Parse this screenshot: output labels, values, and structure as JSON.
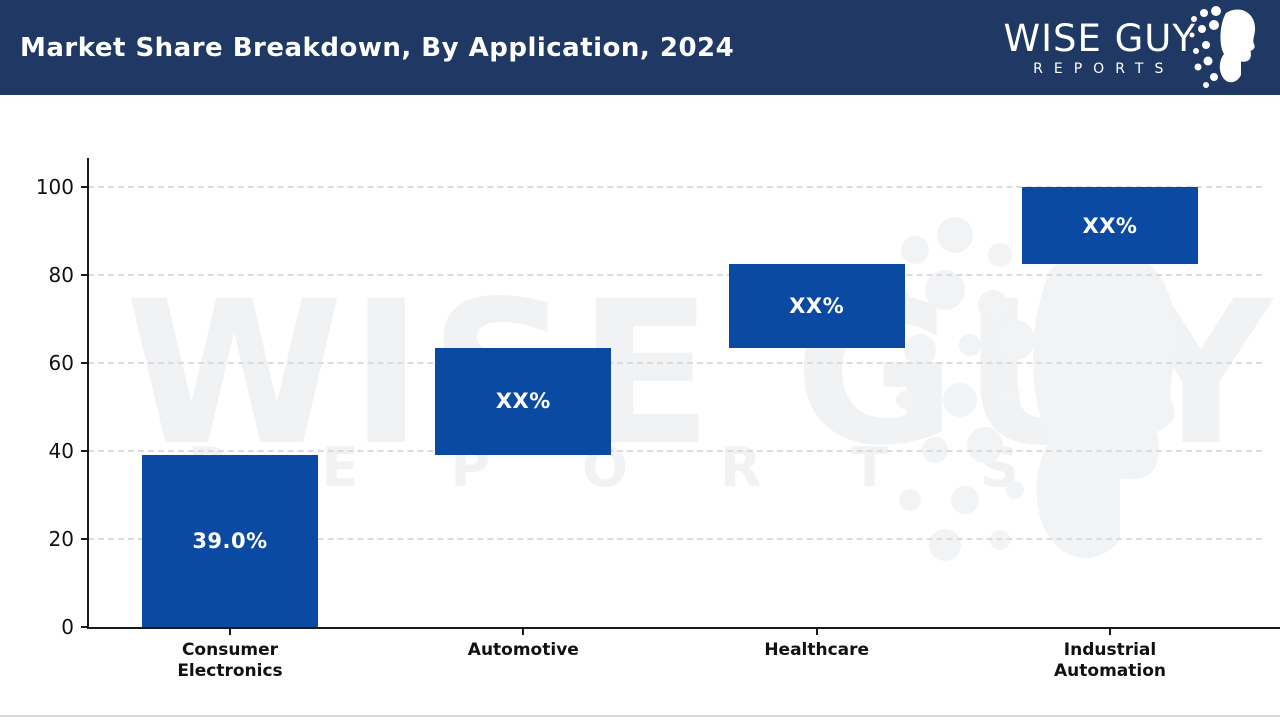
{
  "header": {
    "title": "Market Share Breakdown, By Application, 2024",
    "background_color": "#1f3864",
    "logo": {
      "brand_line1": "WISE GUY",
      "brand_line2": "REPORTS"
    }
  },
  "watermark": {
    "line1": "WISE GUY",
    "line2": "REPORTS"
  },
  "chart_data": {
    "type": "bar",
    "variant": "waterfall",
    "title": "Market Share Breakdown, By Application, 2024",
    "categories": [
      "Consumer Electronics",
      "Automotive",
      "Healthcare",
      "Industrial Automation"
    ],
    "category_label_lines": [
      [
        "Consumer",
        "Electronics"
      ],
      [
        "Automotive"
      ],
      [
        "Healthcare"
      ],
      [
        "Industrial",
        "Automation"
      ]
    ],
    "series": [
      {
        "name": "Market share (%)",
        "segments": [
          {
            "category": "Consumer Electronics",
            "start": 0,
            "end": 39,
            "label": "39.0%"
          },
          {
            "category": "Automotive",
            "start": 39,
            "end": 63.5,
            "label": "XX%"
          },
          {
            "category": "Healthcare",
            "start": 63.5,
            "end": 82.5,
            "label": "XX%"
          },
          {
            "category": "Industrial Automation",
            "start": 82.5,
            "end": 100,
            "label": "XX%"
          }
        ]
      }
    ],
    "yticks": [
      0,
      20,
      40,
      60,
      80,
      100
    ],
    "ylim": [
      0,
      106
    ],
    "xlabel": "",
    "ylabel": "",
    "grid": "horizontal-dashed",
    "gridline_color": "#dcdcdc",
    "bar_color": "#0b4aa2",
    "bar_label_color": "#ffffff",
    "axis_color": "#1a1a1a",
    "legend": "none"
  }
}
